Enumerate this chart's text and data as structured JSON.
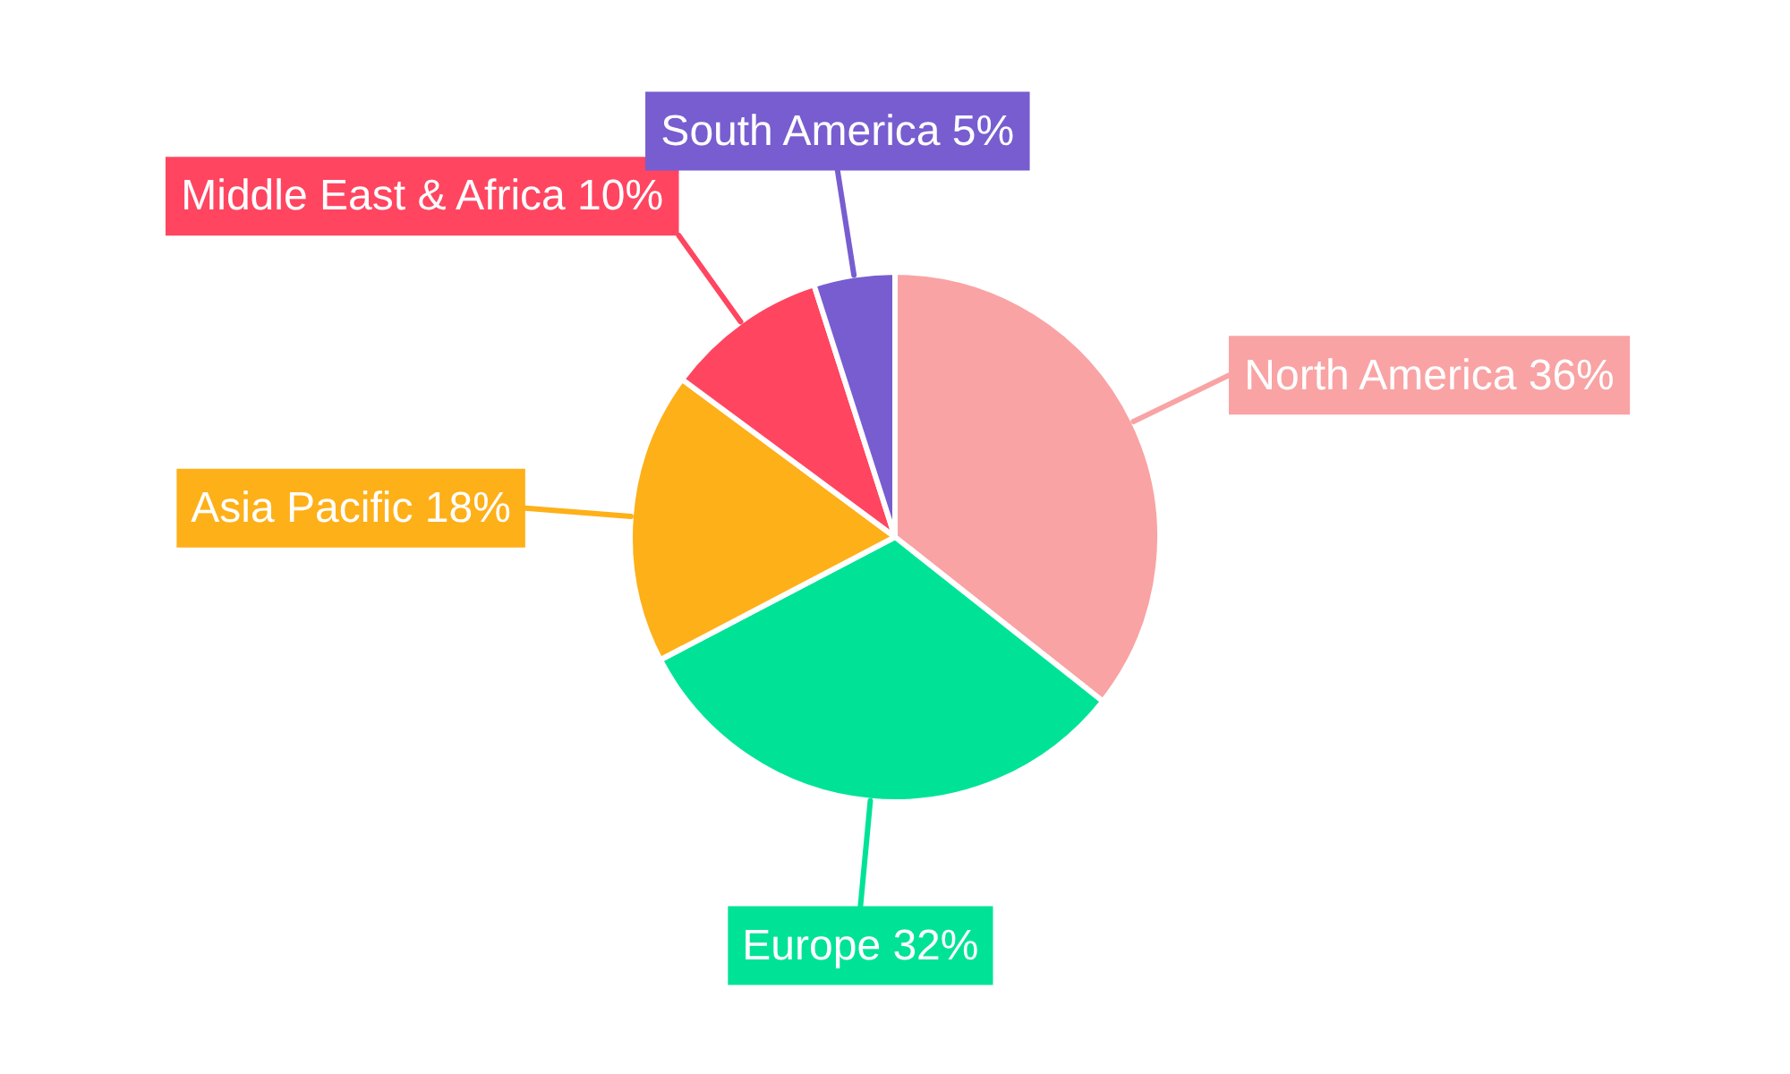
{
  "chart_data": {
    "type": "pie",
    "categories": [
      "North America",
      "Europe",
      "Asia Pacific",
      "Middle East & Africa",
      "South America"
    ],
    "values": [
      36,
      32,
      18,
      10,
      5
    ],
    "value_labels": [
      "36%",
      "32%",
      "18%",
      "10%",
      "5%"
    ],
    "colors": [
      "#f9a3a4",
      "#00e396",
      "#feb019",
      "#ff4560",
      "#775dd0"
    ],
    "legend": false
  }
}
